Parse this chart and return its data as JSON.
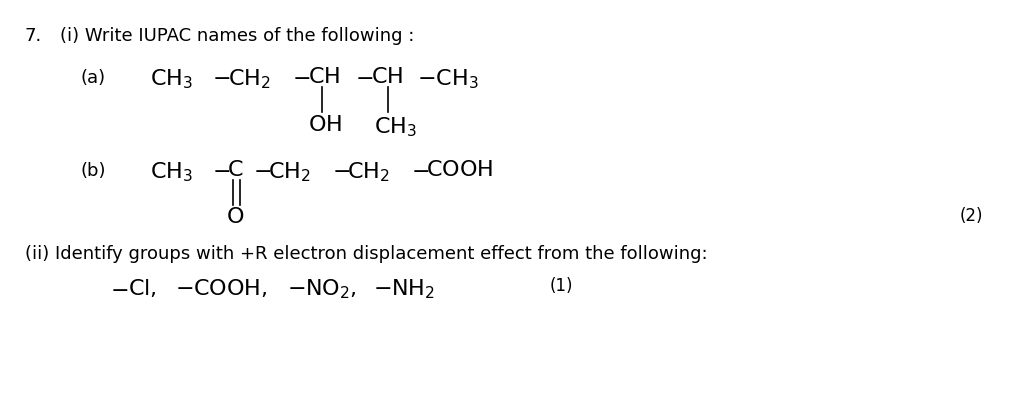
{
  "background_color": "#ffffff",
  "text_color": "#000000",
  "fig_width": 10.24,
  "fig_height": 3.97,
  "question_number": "7.",
  "part_i_label": "(i) Write IUPAC names of the following :",
  "part_a_label": "(a)",
  "part_b_label": "(b)",
  "part_ii_label": "(ii) Identify groups with +R electron displacement effect from the following:",
  "part_ii_content": "– Cl, – COOH, – NO₂, – NH₂",
  "marks_2": "(2)",
  "marks_1": "(1)",
  "font_size_main": 13,
  "font_size_chem": 14,
  "font_size_marks": 12
}
